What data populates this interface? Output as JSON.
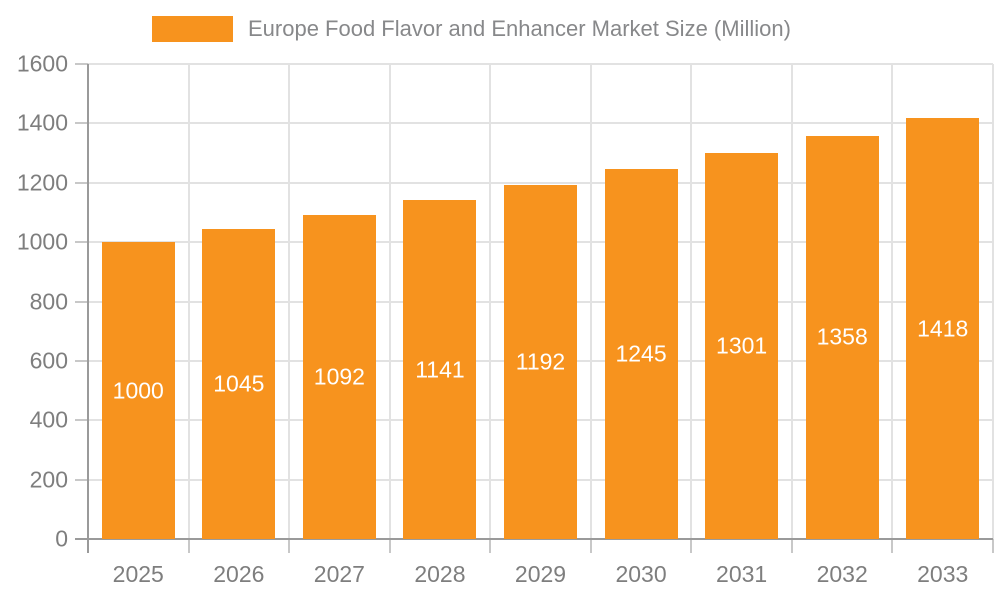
{
  "chart_data": {
    "type": "bar",
    "title": "Europe Food Flavor and Enhancer Market Size (Million)",
    "legend_entries": [
      "Europe Food Flavor and Enhancer Market Size (Million)"
    ],
    "legend_position": "top",
    "categories": [
      "2025",
      "2026",
      "2027",
      "2028",
      "2029",
      "2030",
      "2031",
      "2032",
      "2033"
    ],
    "series": [
      {
        "name": "Europe Food Flavor and Enhancer Market Size (Million)",
        "values": [
          1000,
          1045,
          1092,
          1141,
          1192,
          1245,
          1301,
          1358,
          1418
        ]
      }
    ],
    "bar_data_labels": [
      "1000",
      "1045",
      "1092",
      "1141",
      "1192",
      "1245",
      "1301",
      "1358",
      "1418"
    ],
    "xlabel": "",
    "ylabel": "",
    "ylim": [
      0,
      1600
    ],
    "ytick_step": 200,
    "ytick_labels": [
      "0",
      "200",
      "400",
      "600",
      "800",
      "1000",
      "1200",
      "1400",
      "1600"
    ],
    "grid": true,
    "colors": {
      "bar": "#F7931E",
      "bar_label_text": "#FFFFFF",
      "axis_text": "#7E7E7E",
      "legend_text": "#87888A",
      "grid_line": "#E2E2E2",
      "axis_line": "#9A9A9A",
      "tick_mark": "#C8C8C8",
      "background": "#FFFFFF"
    }
  }
}
